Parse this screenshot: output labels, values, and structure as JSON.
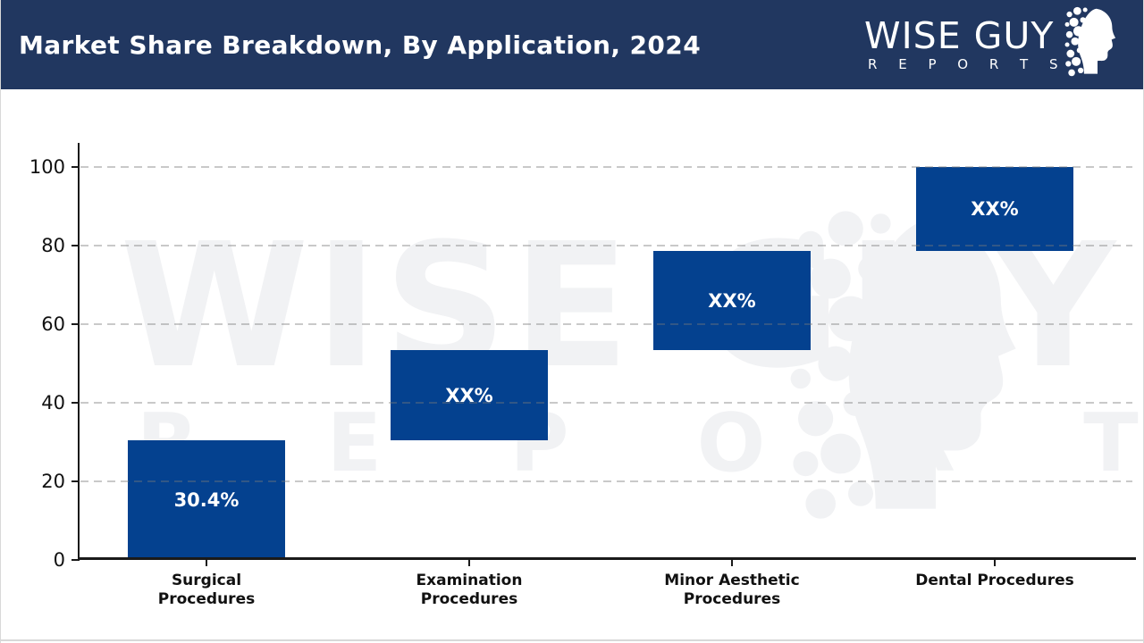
{
  "header": {
    "title": "Market Share Breakdown, By Application, 2024",
    "logo": {
      "line1": "WISE GUY",
      "line2": "R E P O R T S"
    }
  },
  "watermark": {
    "line1": "WISE GUY",
    "line2": "R E P O R T S"
  },
  "colors": {
    "header_bg": "#213760",
    "bar": "#04418f",
    "bar_label": "#ffffff",
    "grid": "rgba(120,120,120,0.40)",
    "axis": "#1a1a1a",
    "tick_label": "#111111",
    "watermark": "#f1f2f4",
    "logo_text": "#ffffff"
  },
  "chart_data": {
    "type": "bar",
    "subtype": "waterfall",
    "title": "Market Share Breakdown, By Application, 2024",
    "xlabel": "",
    "ylabel": "",
    "ylim": [
      0,
      105
    ],
    "yticks": [
      0,
      20,
      40,
      60,
      80,
      100
    ],
    "grid": "dashed-horizontal",
    "legend": "none",
    "categories": [
      {
        "label": "Surgical Procedures",
        "lines": [
          "Surgical",
          "Procedures"
        ]
      },
      {
        "label": "Examination Procedures",
        "lines": [
          "Examination",
          "Procedures"
        ]
      },
      {
        "label": "Minor Aesthetic Procedures",
        "lines": [
          "Minor Aesthetic",
          "Procedures"
        ]
      },
      {
        "label": "Dental Procedures",
        "lines": [
          "Dental Procedures"
        ]
      }
    ],
    "segments": [
      {
        "category": "Surgical Procedures",
        "start": 0,
        "end": 30.4,
        "value": 30.4,
        "value_label": "30.4%"
      },
      {
        "category": "Examination Procedures",
        "start": 30.4,
        "end": 53.3,
        "value": 22.9,
        "value_label": "XX%"
      },
      {
        "category": "Minor Aesthetic Procedures",
        "start": 53.3,
        "end": 78.6,
        "value": 25.3,
        "value_label": "XX%"
      },
      {
        "category": "Dental Procedures",
        "start": 78.6,
        "end": 100,
        "value": 21.4,
        "value_label": "XX%"
      }
    ]
  }
}
